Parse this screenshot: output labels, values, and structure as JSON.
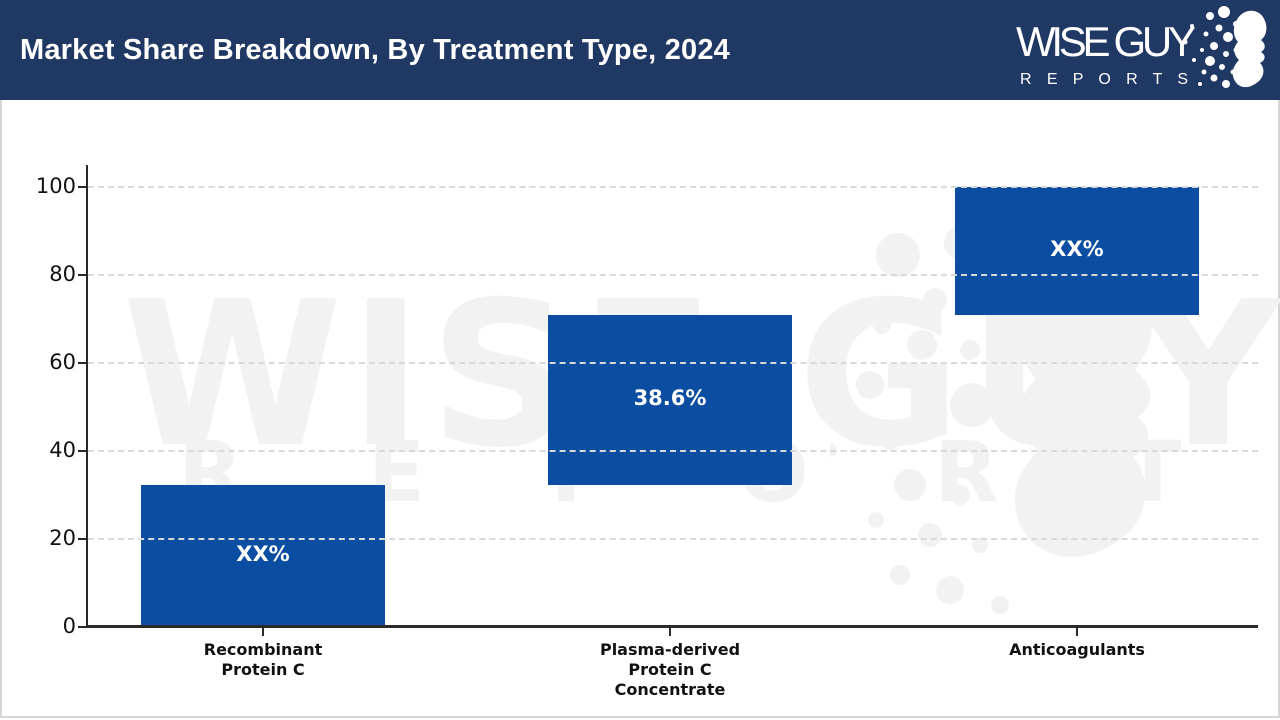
{
  "header": {
    "title": "Market Share Breakdown, By Treatment Type, 2024",
    "logo_line1": "WISE GUY",
    "logo_line2": "R E P O R T S"
  },
  "watermark": {
    "line1": "WISE GUY",
    "line2": "R E P O R T S"
  },
  "colors": {
    "header_bg": "#1f3864",
    "header_text": "#ffffff",
    "bar": "#0b4da0",
    "bar_label": "#ffffff",
    "grid": "#d9d9d9",
    "axis": "#2a2a2a",
    "tick_text": "#111111",
    "watermark": "#f2f2f2",
    "frame_border": "#d5d5d5"
  },
  "chart_data": {
    "type": "bar",
    "subtype": "floating-segment breakdown (stacked waterfall of market share)",
    "title": "Market Share Breakdown, By Treatment Type, 2024",
    "categories": [
      "Recombinant Protein C",
      "Plasma-derived Protein C Concentrate",
      "Anticoagulants"
    ],
    "category_lines": [
      [
        "Recombinant",
        "Protein C"
      ],
      [
        "Plasma-derived",
        "Protein C",
        "Concentrate"
      ],
      [
        "Anticoagulants"
      ]
    ],
    "segments": [
      {
        "category": "Recombinant Protein C",
        "start": 0,
        "end": 32.2,
        "value_label": "XX%"
      },
      {
        "category": "Plasma-derived Protein C Concentrate",
        "start": 32.2,
        "end": 70.8,
        "value_label": "38.6%"
      },
      {
        "category": "Anticoagulants",
        "start": 70.8,
        "end": 100,
        "value_label": "XX%"
      }
    ],
    "xlabel": "",
    "ylabel": "",
    "ylim": [
      0,
      100
    ],
    "yticks": [
      0,
      20,
      40,
      60,
      80,
      100
    ],
    "grid": {
      "axis": "y",
      "style": "dashed",
      "on": true,
      "drawn_above_bars": true
    },
    "legend": null
  }
}
